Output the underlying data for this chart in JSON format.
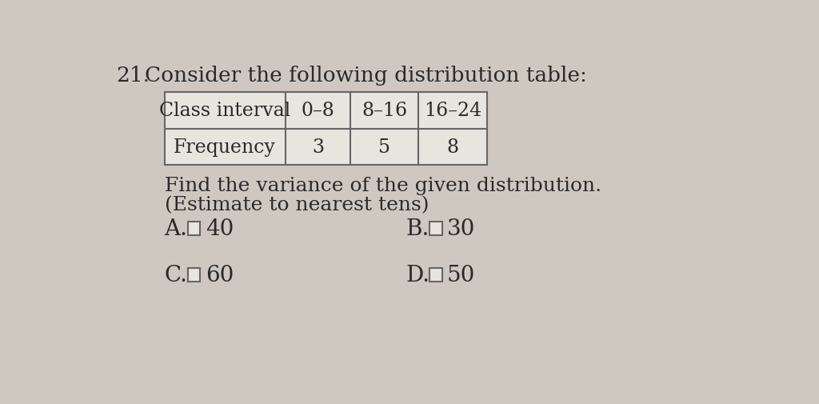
{
  "question_number": "21.",
  "question_text": "Consider the following distribution table:",
  "table_headers": [
    "Class interval",
    "0–8",
    "8–16",
    "16–24"
  ],
  "table_row_label": "Frequency",
  "table_row_values": [
    "3",
    "5",
    "8"
  ],
  "body_text_line1": "Find the variance of the given distribution.",
  "body_text_line2": "(Estimate to nearest tens)",
  "options": [
    {
      "label": "A.",
      "text": "40"
    },
    {
      "label": "B.",
      "text": "30"
    },
    {
      "label": "C.",
      "text": "60"
    },
    {
      "label": "D.",
      "text": "50"
    }
  ],
  "background_color": "#cec8c0",
  "text_color": "#2a2a2a",
  "table_border_color": "#666666",
  "table_bg_color": "#e8e4de",
  "font_size_question": 19,
  "font_size_table": 17,
  "font_size_body": 18,
  "font_size_options": 20
}
